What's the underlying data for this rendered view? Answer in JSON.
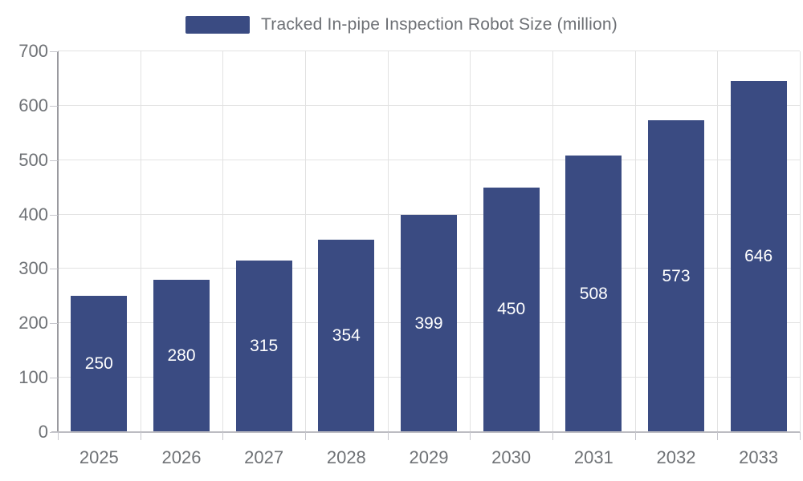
{
  "chart_data": {
    "type": "bar",
    "title": "Tracked In-pipe Inspection Robot Size (million)",
    "series_name": "Tracked In-pipe Inspection Robot Size (million)",
    "categories": [
      "2025",
      "2026",
      "2027",
      "2028",
      "2029",
      "2030",
      "2031",
      "2032",
      "2033"
    ],
    "values": [
      250,
      280,
      315,
      354,
      399,
      450,
      508,
      573,
      646
    ],
    "data_labels": [
      "250",
      "280",
      "315",
      "354",
      "399",
      "450",
      "508",
      "573",
      "646"
    ],
    "xlabel": "",
    "ylabel": "",
    "ylim": [
      0,
      700
    ],
    "ytick_step": 100,
    "yticks": [
      0,
      100,
      200,
      300,
      400,
      500,
      600,
      700
    ],
    "grid": true,
    "legend_position": "top"
  },
  "colors": {
    "bar": "#3a4b82",
    "value_label": "#ffffff",
    "grid_line": "#e2e2e2",
    "y_axis_line": "#9a9a9f",
    "x_axis_line": "#bcbcc2",
    "tick_text": "#6f7276",
    "legend_text": "#6d7075",
    "background": "#ffffff"
  }
}
